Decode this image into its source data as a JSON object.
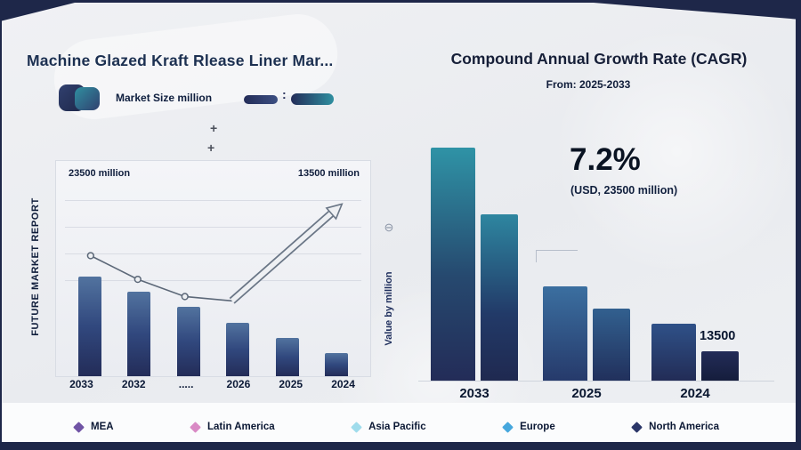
{
  "colors": {
    "navy": "#1e2749",
    "teal": "#2f93a6",
    "steel_blue": "#52739f",
    "background": "#eef0f3"
  },
  "decor": {
    "plus": "+",
    "colon": ":",
    "minus_circle": "⊖"
  },
  "left": {
    "title": "Machine Glazed Kraft Rlease Liner Mar...",
    "legend_label": "Market Size million",
    "side_label": "FUTURE MARKET REPORT"
  },
  "right": {
    "title": "Compound Annual Growth Rate (CAGR)",
    "subtitle": "From: 2025-2033",
    "side_label": "Value by million"
  },
  "legend": [
    {
      "label": "MEA",
      "color": "#7054a5"
    },
    {
      "label": "Latin America",
      "color": "#d98ac5"
    },
    {
      "label": "Asia Pacific",
      "color": "#9fdcec"
    },
    {
      "label": "Europe",
      "color": "#46a7dd"
    },
    {
      "label": "North America",
      "color": "#2a3668"
    }
  ],
  "chart_data": [
    {
      "type": "bar",
      "title": "Machine Glazed Kraft Rlease Liner Market - Market Size million",
      "categories": [
        "2033",
        "2032",
        ".....",
        "2026",
        "2025",
        "2024"
      ],
      "values": [
        23500,
        21500,
        19500,
        17500,
        15500,
        13500
      ],
      "xlabel": "",
      "ylabel": "Market Size million",
      "ylim": [
        10500,
        23500
      ],
      "grid": true,
      "legend_position": "top",
      "annotations": [
        "23500 million",
        "13500 million"
      ],
      "trend_points_pct": [
        [
          11,
          44
        ],
        [
          26,
          55
        ],
        [
          41,
          63
        ],
        [
          56,
          65
        ]
      ],
      "arrow_tip_pct": [
        91,
        20
      ]
    },
    {
      "type": "bar",
      "title": "Compound Annual Growth Rate (CAGR)",
      "subtitle": "From: 2025-2033",
      "categories": [
        "2033",
        "2025",
        "2024"
      ],
      "series": [
        {
          "name": "value-high",
          "values": [
            23500,
            9500,
            5700
          ]
        },
        {
          "name": "value-low",
          "values": [
            16800,
            7300,
            3000
          ]
        }
      ],
      "ylabel": "Value by million",
      "ylim": [
        0,
        23500
      ],
      "grid": false,
      "cagr_pct": 7.2,
      "annotations": [
        "7.2%",
        "(USD, 23500 million)",
        "13500"
      ]
    }
  ]
}
